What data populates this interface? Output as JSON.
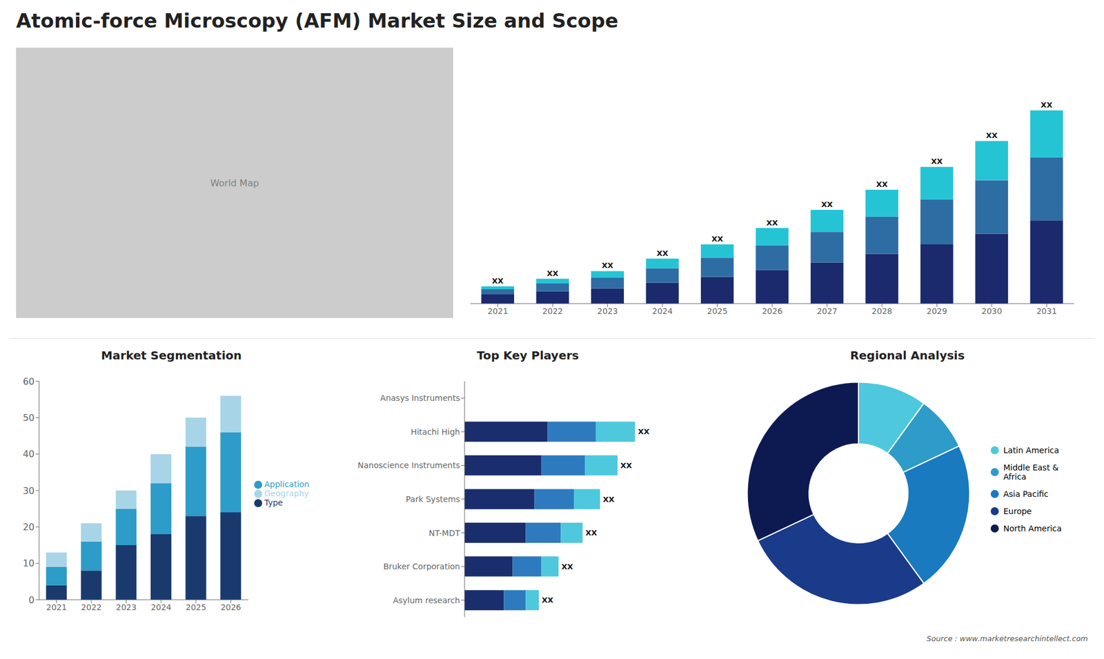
{
  "title": "Atomic-force Microscopy (AFM) Market Size and Scope",
  "annotations": [
    "World Map",
    "Source : www.marketresearchintellect.com"
  ],
  "chart_data": [
    {
      "type": "bar",
      "stacked": true,
      "categories": [
        "2021",
        "2022",
        "2023",
        "2024",
        "2025",
        "2026",
        "2027",
        "2028",
        "2029",
        "2030",
        "2031"
      ],
      "series": [
        {
          "color": "#1a2a6c",
          "values": [
            1.0,
            1.3,
            1.6,
            2.2,
            2.8,
            3.5,
            4.3,
            5.2,
            6.2,
            7.3,
            8.7
          ]
        },
        {
          "color": "#2e6da4",
          "values": [
            0.5,
            0.8,
            1.1,
            1.5,
            2.0,
            2.6,
            3.2,
            3.9,
            4.7,
            5.6,
            6.6
          ]
        },
        {
          "color": "#25c4d4",
          "values": [
            0.3,
            0.5,
            0.7,
            1.0,
            1.4,
            1.8,
            2.3,
            2.8,
            3.4,
            4.1,
            4.9
          ]
        }
      ],
      "ylim": [
        0,
        25.856
      ],
      "tick_labels": "x",
      "annotations": [
        "XX",
        "XX",
        "XX",
        "XX",
        "XX",
        "XX",
        "XX",
        "XX",
        "XX",
        "XX",
        "XX"
      ]
    },
    {
      "type": "bar",
      "title": "Market Segmentation",
      "stacked": true,
      "categories": [
        "2021",
        "2022",
        "2023",
        "2024",
        "2025",
        "2026"
      ],
      "series": [
        {
          "name": "Type",
          "color": "#1a3a6e",
          "values": [
            4,
            8,
            15,
            18,
            23,
            24
          ]
        },
        {
          "name": "Application",
          "color": "#2e9cc8",
          "values": [
            5,
            8,
            10,
            14,
            19,
            22
          ]
        },
        {
          "name": "Geography",
          "color": "#a8d4e8",
          "values": [
            4,
            5,
            5,
            8,
            8,
            10
          ]
        }
      ],
      "ylim": [
        0,
        60
      ],
      "yticks": [
        0,
        10,
        20,
        30,
        40,
        50,
        60
      ],
      "grid": false,
      "legend": "right"
    },
    {
      "type": "bar",
      "title": "Top Key Players",
      "orientation": "horizontal",
      "stacked": true,
      "categories": [
        "Anasys Instruments",
        "Hitachi High",
        "Nanoscience Instruments",
        "Park Systems",
        "NT-MDT",
        "Bruker Corporation",
        "Asylum research"
      ],
      "series": [
        {
          "color": "#1a2e6e",
          "values": [
            0,
            38,
            35,
            32,
            28,
            22,
            18
          ]
        },
        {
          "color": "#2e7abf",
          "values": [
            0,
            22,
            20,
            18,
            16,
            13,
            10
          ]
        },
        {
          "color": "#4ec8dc",
          "values": [
            0,
            18,
            15,
            12,
            10,
            8,
            6
          ]
        }
      ],
      "xlim": [
        0,
        100
      ],
      "tick_labels": "y",
      "annotations": [
        null,
        "XX",
        "XX",
        "XX",
        "XX",
        "XX",
        "XX"
      ]
    },
    {
      "type": "donut",
      "title": "Regional Analysis",
      "categories": [
        "Latin America",
        "Middle East &\nAfrica",
        "Asia Pacific",
        "Europe",
        "North America"
      ],
      "values": [
        10,
        8,
        22,
        28,
        32
      ],
      "colors": [
        "#4ec8dc",
        "#2e9cc8",
        "#1a7abf",
        "#1a3a8a",
        "#0d1a52"
      ],
      "legend": "right"
    }
  ]
}
